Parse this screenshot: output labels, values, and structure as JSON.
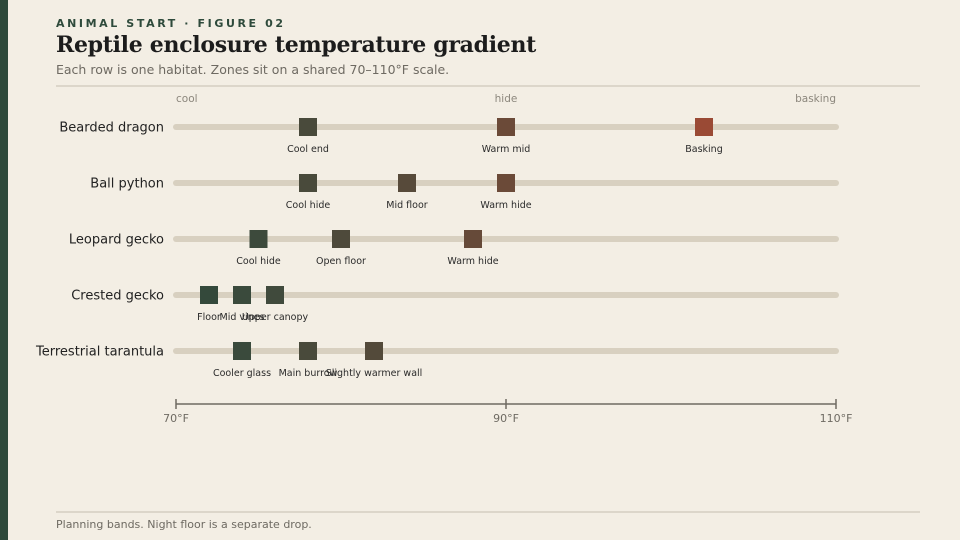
{
  "header": {
    "kicker": "ANIMAL START · FIGURE 02",
    "title": "Reptile enclosure temperature gradient",
    "subtitle": "Each row is one habitat. Zones sit on a shared 70–110°F scale."
  },
  "footer": {
    "note": "Planning bands. Night floor is a separate drop."
  },
  "colors": {
    "background": "#f3eee4",
    "accent": "#2e4a3b",
    "track": "#d8d0c0",
    "axis": "#6e6a62",
    "row_label": "#222222",
    "zone_label": "#2a2a2a",
    "muted_label": "#8c877d"
  },
  "chart_data": {
    "type": "scatter",
    "xlabel": "",
    "unit": "°F",
    "xlim": [
      70,
      110
    ],
    "ticks": [
      {
        "value": 70,
        "label": "70°F"
      },
      {
        "value": 90,
        "label": "90°F"
      },
      {
        "value": 110,
        "label": "110°F"
      }
    ],
    "zone_headers": [
      {
        "value": 70,
        "label": "cool",
        "anchor": "start"
      },
      {
        "value": 90,
        "label": "hide",
        "anchor": "middle"
      },
      {
        "value": 110,
        "label": "basking",
        "anchor": "end"
      }
    ],
    "grid": false,
    "legend": "none",
    "rows": [
      {
        "name": "Bearded dragon",
        "zones": [
          {
            "label": "Cool end",
            "value": 78,
            "color": "#494a3b"
          },
          {
            "label": "Warm mid",
            "value": 90,
            "color": "#6b4a38"
          },
          {
            "label": "Basking",
            "value": 102,
            "color": "#9a4a35"
          }
        ]
      },
      {
        "name": "Ball python",
        "zones": [
          {
            "label": "Cool hide",
            "value": 78,
            "color": "#494a3b"
          },
          {
            "label": "Mid floor",
            "value": 84,
            "color": "#574a3a"
          },
          {
            "label": "Warm hide",
            "value": 90,
            "color": "#6b4a38"
          }
        ]
      },
      {
        "name": "Leopard gecko",
        "zones": [
          {
            "label": "Cool hide",
            "value": 75,
            "color": "#3d4a3c"
          },
          {
            "label": "Open floor",
            "value": 80,
            "color": "#4e4a3b"
          },
          {
            "label": "Warm hide",
            "value": 88,
            "color": "#664a39"
          }
        ]
      },
      {
        "name": "Crested gecko",
        "zones": [
          {
            "label": "Floor",
            "value": 72,
            "color": "#34493b"
          },
          {
            "label": "Mid vines",
            "value": 74,
            "color": "#3a4a3c"
          },
          {
            "label": "Upper canopy",
            "value": 76,
            "color": "#404a3c"
          }
        ]
      },
      {
        "name": "Terrestrial tarantula",
        "zones": [
          {
            "label": "Cooler glass",
            "value": 74,
            "color": "#3a4a3c"
          },
          {
            "label": "Main burrow",
            "value": 78,
            "color": "#494a3b"
          },
          {
            "label": "Slightly warmer wall",
            "value": 82,
            "color": "#534a3a"
          }
        ]
      }
    ]
  }
}
